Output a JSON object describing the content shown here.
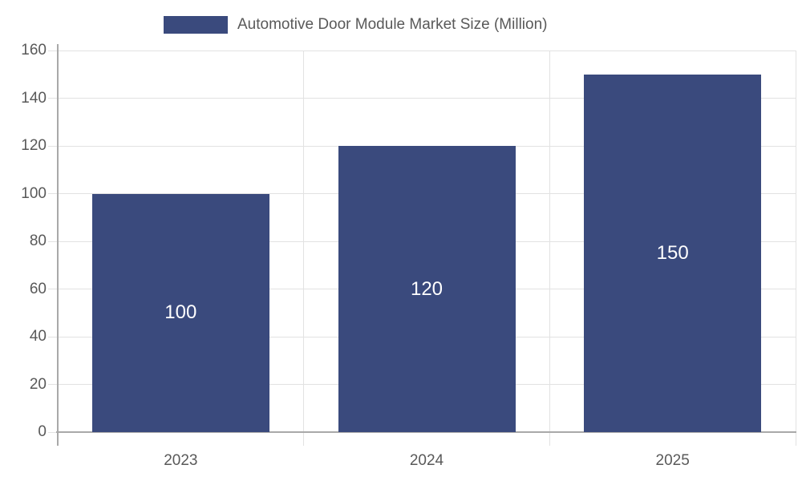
{
  "legend": {
    "label": "Automotive Door Module Market Size (Million)"
  },
  "colors": {
    "bar": "#3a4a7d",
    "axis_line": "#a9a9a9",
    "grid_line": "#e2e2e2",
    "tick_label": "#595959",
    "legend_text": "#595959",
    "data_label": "#ffffff",
    "background": "#ffffff"
  },
  "chart_data": {
    "type": "bar",
    "title": "Automotive Door Module Market Size (Million)",
    "categories": [
      "2023",
      "2024",
      "2025"
    ],
    "values": [
      100,
      120,
      150
    ],
    "series": [
      {
        "name": "Automotive Door Module Market Size (Million)",
        "values": [
          100,
          120,
          150
        ]
      }
    ],
    "data_labels": [
      "100",
      "120",
      "150"
    ],
    "xlabel": "",
    "ylabel": "",
    "ylim": [
      0,
      160
    ],
    "yticks": [
      0,
      20,
      40,
      60,
      80,
      100,
      120,
      140,
      160
    ],
    "grid": true,
    "legend_position": "top-center"
  }
}
